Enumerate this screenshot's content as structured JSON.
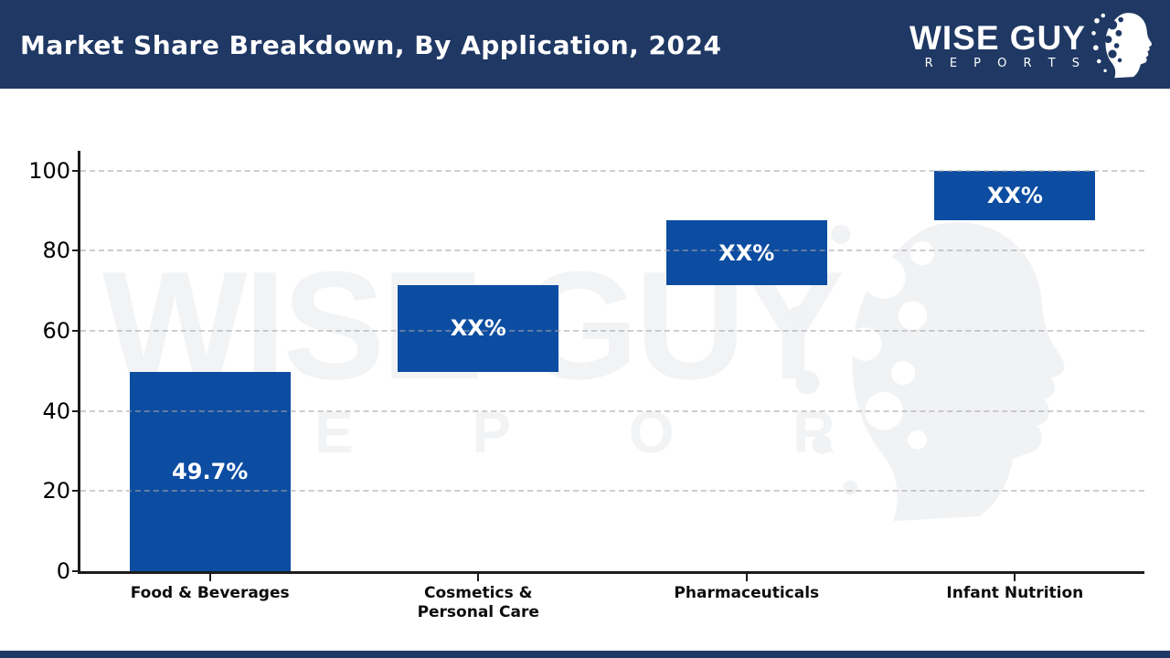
{
  "header": {
    "title": "Market Share Breakdown, By Application, 2024",
    "bg_color": "#1f3864",
    "logo": {
      "line1": "WISE GUY",
      "line2": "R E P O R T S"
    }
  },
  "watermark": {
    "line1": "WISE GUY",
    "line2": "R E P O R T S"
  },
  "footer": {
    "bg_color": "#1f3864"
  },
  "chart_data": {
    "type": "bar",
    "subtype": "waterfall",
    "title": "Market Share Breakdown, By Application, 2024",
    "categories": [
      "Food & Beverages",
      "Cosmetics &\nPersonal Care",
      "Pharmaceuticals",
      "Infant Nutrition"
    ],
    "bars": [
      {
        "category": "Food & Beverages",
        "start": 0,
        "end": 49.7,
        "label": "49.7%"
      },
      {
        "category": "Cosmetics & Personal Care",
        "start": 49.7,
        "end": 71.5,
        "label": "XX%"
      },
      {
        "category": "Pharmaceuticals",
        "start": 71.5,
        "end": 87.5,
        "label": "XX%"
      },
      {
        "category": "Infant Nutrition",
        "start": 87.5,
        "end": 100,
        "label": "XX%"
      }
    ],
    "ylim": [
      0,
      100
    ],
    "yticks": [
      0,
      20,
      40,
      60,
      80,
      100
    ],
    "xlabel": "",
    "ylabel": "",
    "grid": "horizontal-dashed",
    "legend": "none",
    "bar_color": "#0c4da2",
    "value_label_color": "#ffffff",
    "axis_color": "#1c1c1c"
  }
}
